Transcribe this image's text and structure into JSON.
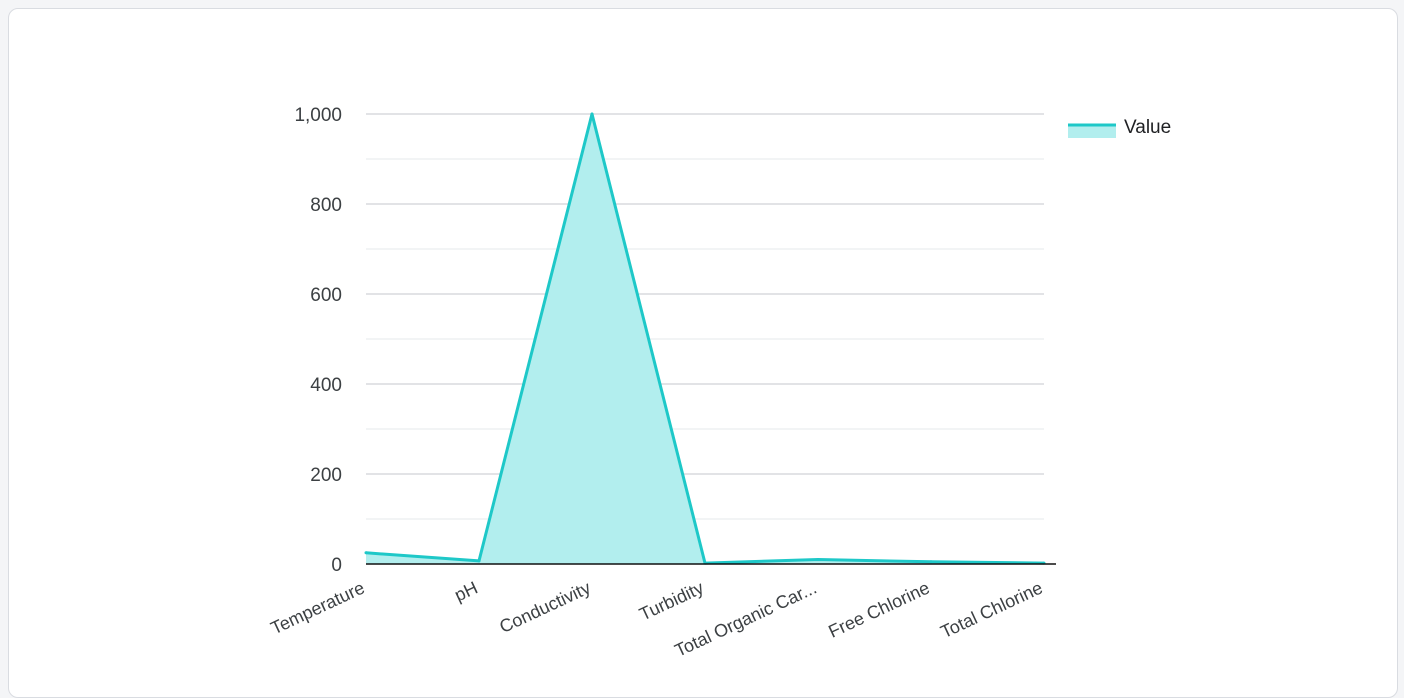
{
  "colors": {
    "series": "#1ec8c8",
    "fill": "#b2eeee",
    "grid_major": "#c4c7cc",
    "grid_minor": "#e6e8eb",
    "axis": "#111111"
  },
  "chart_data": {
    "type": "area",
    "categories": [
      "Temperature",
      "pH",
      "Conductivity",
      "Turbidity",
      "Total Organic Car...",
      "Free Chlorine",
      "Total Chlorine"
    ],
    "series": [
      {
        "name": "Value",
        "values": [
          25,
          7,
          1000,
          2,
          10,
          5,
          2
        ]
      }
    ],
    "ylim": [
      0,
      1000
    ],
    "yticks": [
      0,
      200,
      400,
      600,
      800,
      1000
    ],
    "ytick_labels": [
      "0",
      "200",
      "400",
      "600",
      "800",
      "1,000"
    ],
    "grid": true,
    "legend": "top-right"
  }
}
